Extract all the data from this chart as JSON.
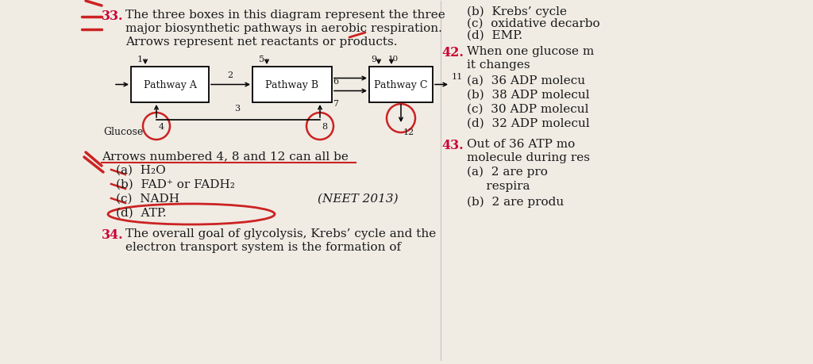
{
  "bg_color": "#f0ece4",
  "text_color": "#1a1a1a",
  "q33_number": "33.",
  "q33_line1": "The three boxes in this diagram represent the three",
  "q33_line2": "major biosynthetic pathways in aerobic respiration.",
  "q33_line3": "Arrows represent net reactants or products.",
  "q33_sub": "Arrows numbered 4, 8 and 12 can all be",
  "q33_options": [
    "(a)  H₂O",
    "(b)  FAD⁺ or FADH₂",
    "(c)  NADH",
    "(d)  ATP."
  ],
  "neet": "(NEET 2013)",
  "q34_number": "34.",
  "q34_line1": "The overall goal of glycolysis, Krebs’ cycle and the",
  "q34_line2": "electron transport system is the formation of",
  "right_b": "(b)  Krebs’ cycle",
  "right_c": "(c)  oxidative decarbo",
  "right_d": "(d)  EMP.",
  "q42_num": "42.",
  "q42_line1": "When one glucose m",
  "q42_line2": "it changes",
  "q42_a": "(a)  36 ADP molecu",
  "q42_b": "(b)  38 ADP molecul",
  "q42_c": "(c)  30 ADP molecul",
  "q42_d": "(d)  32 ADP molecul",
  "q43_num": "43.",
  "q43_line1": "Out of 36 ATP mo",
  "q43_line2": "molecule during res",
  "q43_a1": "(a)  2 are pro",
  "q43_a2": "     respira",
  "q43_b": "(b)  2 are produ"
}
